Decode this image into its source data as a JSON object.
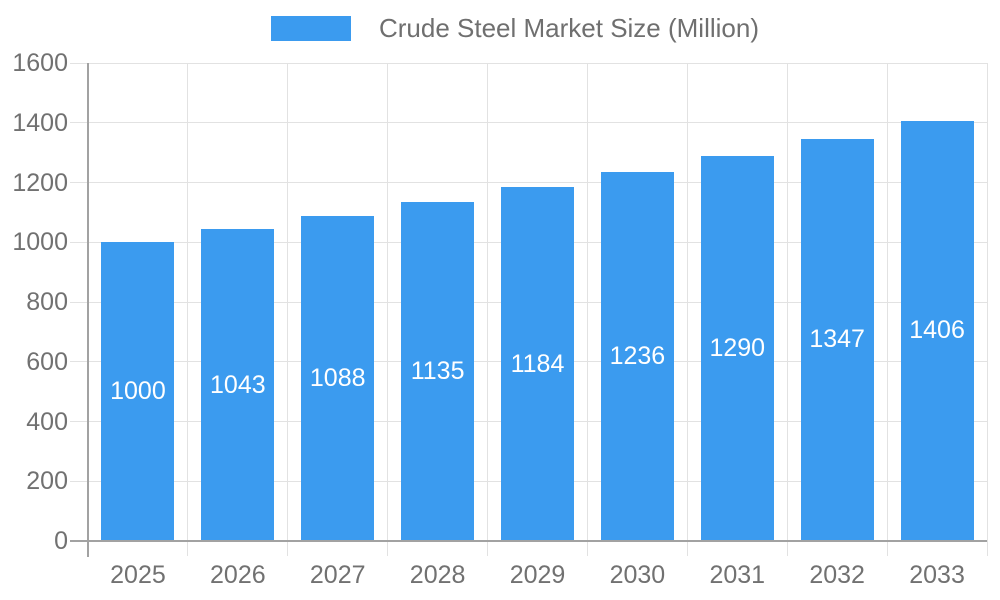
{
  "chart_data": {
    "type": "bar",
    "title": "",
    "legend_label": "Crude Steel Market Size (Million)",
    "legend_position": "top",
    "categories": [
      "2025",
      "2026",
      "2027",
      "2028",
      "2029",
      "2030",
      "2031",
      "2032",
      "2033"
    ],
    "values": [
      1000,
      1043,
      1088,
      1135,
      1184,
      1236,
      1290,
      1347,
      1406
    ],
    "xlabel": "",
    "ylabel": "",
    "ylim": [
      0,
      1600
    ],
    "yticks": [
      0,
      200,
      400,
      600,
      800,
      1000,
      1200,
      1400,
      1600
    ],
    "grid": true,
    "bar_labels_visible": true,
    "colors": {
      "bar": "#3B9BEF",
      "bar_label": "#ffffff",
      "axis_text": "#717171",
      "legend_text": "#6f6f6f",
      "grid_line": "#e2e2e2",
      "axis_line": "#a2a2a2",
      "background": "#ffffff"
    }
  }
}
